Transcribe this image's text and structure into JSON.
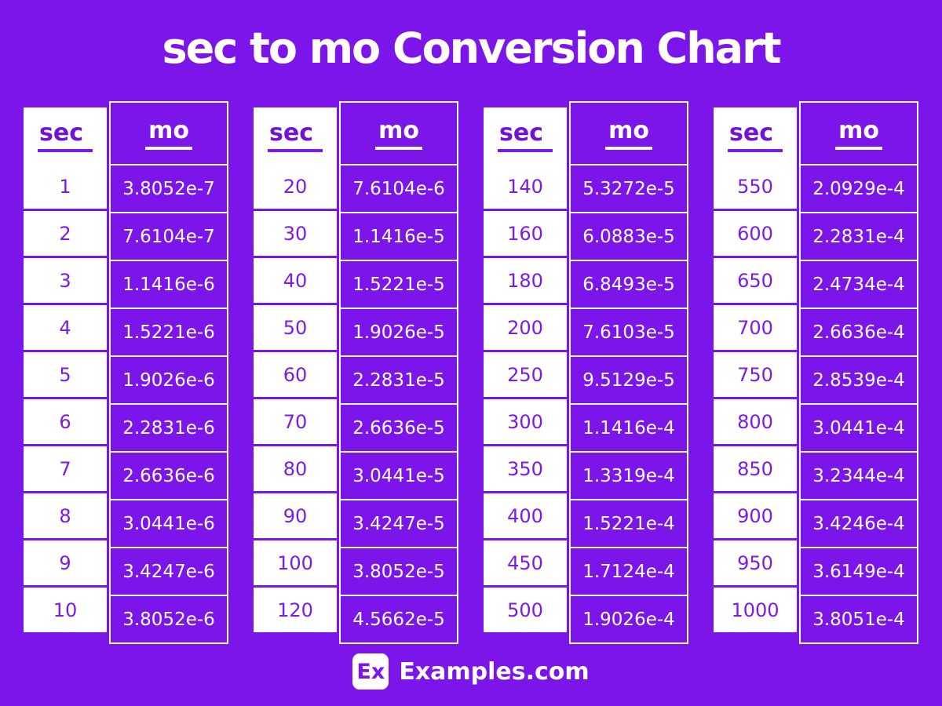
{
  "page": {
    "title": "sec to mo Conversion Chart",
    "background_color": "#7b15e9",
    "text_white": "#ffffff",
    "text_purple": "#7d1ae4"
  },
  "footer": {
    "logo_badge": "Ex",
    "brand": "Examples.com"
  },
  "chart_data": {
    "type": "table",
    "title": "sec to mo Conversion Chart",
    "columns": [
      "sec",
      "mo"
    ],
    "tables": [
      {
        "headers": [
          "sec",
          "mo"
        ],
        "rows": [
          [
            "1",
            "3.8052e-7"
          ],
          [
            "2",
            "7.6104e-7"
          ],
          [
            "3",
            "1.1416e-6"
          ],
          [
            "4",
            "1.5221e-6"
          ],
          [
            "5",
            "1.9026e-6"
          ],
          [
            "6",
            "2.2831e-6"
          ],
          [
            "7",
            "2.6636e-6"
          ],
          [
            "8",
            "3.0441e-6"
          ],
          [
            "9",
            "3.4247e-6"
          ],
          [
            "10",
            "3.8052e-6"
          ]
        ]
      },
      {
        "headers": [
          "sec",
          "mo"
        ],
        "rows": [
          [
            "20",
            "7.6104e-6"
          ],
          [
            "30",
            "1.1416e-5"
          ],
          [
            "40",
            "1.5221e-5"
          ],
          [
            "50",
            "1.9026e-5"
          ],
          [
            "60",
            "2.2831e-5"
          ],
          [
            "70",
            "2.6636e-5"
          ],
          [
            "80",
            "3.0441e-5"
          ],
          [
            "90",
            "3.4247e-5"
          ],
          [
            "100",
            "3.8052e-5"
          ],
          [
            "120",
            "4.5662e-5"
          ]
        ]
      },
      {
        "headers": [
          "sec",
          "mo"
        ],
        "rows": [
          [
            "140",
            "5.3272e-5"
          ],
          [
            "160",
            "6.0883e-5"
          ],
          [
            "180",
            "6.8493e-5"
          ],
          [
            "200",
            "7.6103e-5"
          ],
          [
            "250",
            "9.5129e-5"
          ],
          [
            "300",
            "1.1416e-4"
          ],
          [
            "350",
            "1.3319e-4"
          ],
          [
            "400",
            "1.5221e-4"
          ],
          [
            "450",
            "1.7124e-4"
          ],
          [
            "500",
            "1.9026e-4"
          ]
        ]
      },
      {
        "headers": [
          "sec",
          "mo"
        ],
        "rows": [
          [
            "550",
            "2.0929e-4"
          ],
          [
            "600",
            "2.2831e-4"
          ],
          [
            "650",
            "2.4734e-4"
          ],
          [
            "700",
            "2.6636e-4"
          ],
          [
            "750",
            "2.8539e-4"
          ],
          [
            "800",
            "3.0441e-4"
          ],
          [
            "850",
            "3.2344e-4"
          ],
          [
            "900",
            "3.4246e-4"
          ],
          [
            "950",
            "3.6149e-4"
          ],
          [
            "1000",
            "3.8051e-4"
          ]
        ]
      }
    ]
  }
}
